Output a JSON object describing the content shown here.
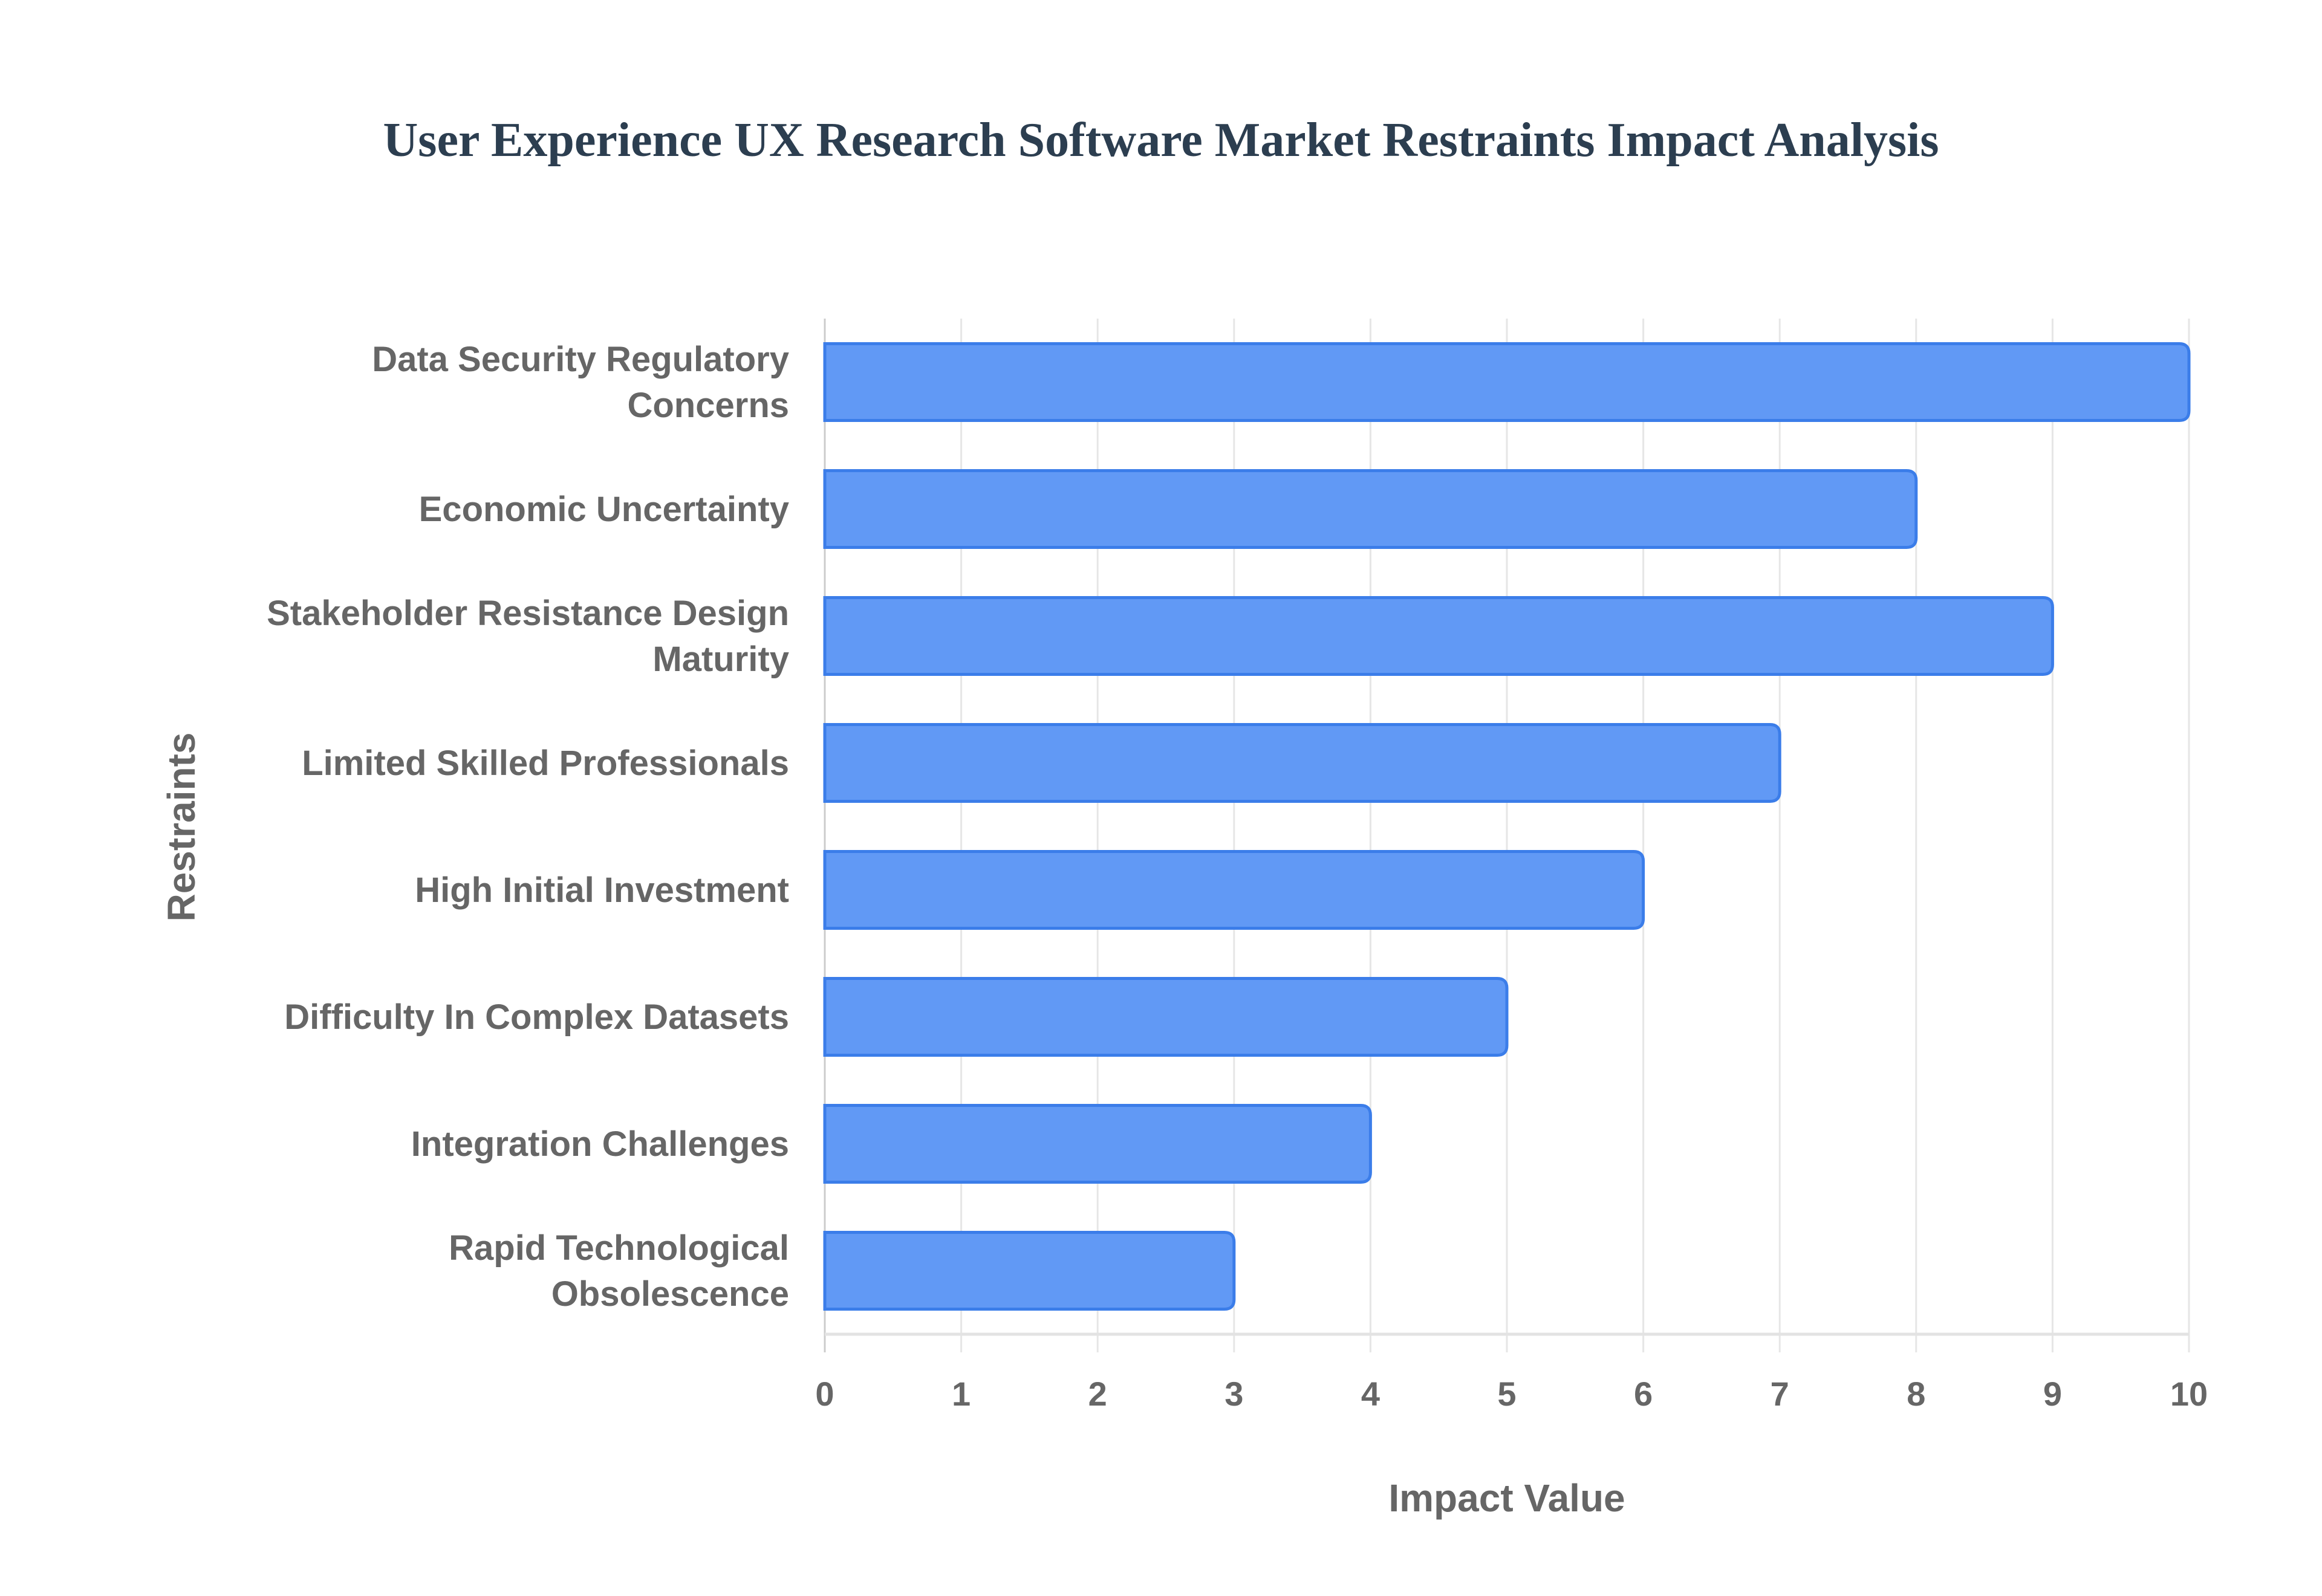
{
  "chart_data": {
    "type": "bar",
    "orientation": "horizontal",
    "title": "User Experience UX Research Software Market Restraints Impact Analysis",
    "xlabel": "Impact Value",
    "ylabel": "Restraints",
    "xlim": [
      0,
      10
    ],
    "xticks": [
      "0",
      "1",
      "2",
      "3",
      "4",
      "5",
      "6",
      "7",
      "8",
      "9",
      "10"
    ],
    "grid": true,
    "categories": [
      [
        "Data Security Regulatory",
        "Concerns"
      ],
      [
        "Economic Uncertainty"
      ],
      [
        "Stakeholder Resistance Design",
        "Maturity"
      ],
      [
        "Limited Skilled Professionals"
      ],
      [
        "High Initial Investment"
      ],
      [
        "Difficulty In Complex Datasets"
      ],
      [
        "Integration Challenges"
      ],
      [
        "Rapid Technological",
        "Obsolescence"
      ]
    ],
    "values": [
      10,
      8,
      9,
      7,
      6,
      5,
      4,
      3
    ],
    "colors": {
      "bar_fill": "#6199f5",
      "bar_border": "#3b7de9",
      "grid": "#e6e6e6",
      "text": "#666666",
      "title": "#2c3e50"
    }
  }
}
